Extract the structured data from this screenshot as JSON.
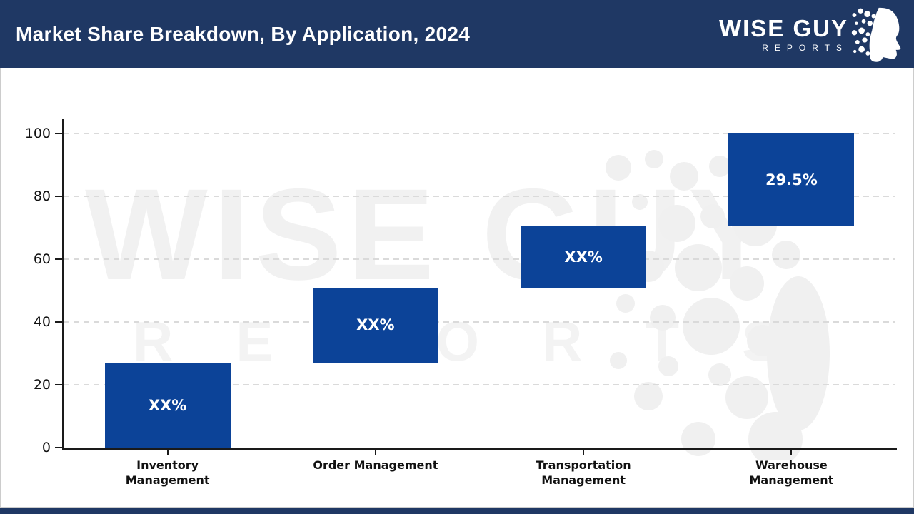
{
  "header": {
    "title": "Market Share Breakdown, By Application, 2024",
    "logo": {
      "wordmark": "WISE GUY",
      "reports": "REPORTS"
    }
  },
  "watermark": {
    "wordmark": "WISE GUY",
    "reports": "REPORTS"
  },
  "chart_data": {
    "type": "bar",
    "subtype": "waterfall",
    "title": "Market Share Breakdown, By Application, 2024",
    "categories": [
      "Inventory\nManagement",
      "Order Management",
      "Transportation\nManagement",
      "Warehouse\nManagement"
    ],
    "segments": [
      {
        "category": "Inventory Management",
        "start": 0,
        "end": 27,
        "label": "XX%"
      },
      {
        "category": "Order Management",
        "start": 27,
        "end": 51,
        "label": "XX%"
      },
      {
        "category": "Transportation Management",
        "start": 51,
        "end": 70.5,
        "label": "XX%"
      },
      {
        "category": "Warehouse Management",
        "start": 70.5,
        "end": 100,
        "label": "29.5%"
      }
    ],
    "xlabel": "",
    "ylabel": "",
    "ylim": [
      0,
      100
    ],
    "yticks": [
      0,
      20,
      40,
      60,
      80,
      100
    ],
    "grid": true,
    "legend": false,
    "bar_color": "#0c4398",
    "bar_label_color": "#ffffff",
    "axis_color": "#1a1a1a",
    "grid_color": "#dadada"
  },
  "colors": {
    "header_bg": "#1f3864",
    "footer_bg": "#1f3864",
    "watermark": "#f1f1f1",
    "chart_border": "#cccccc"
  }
}
